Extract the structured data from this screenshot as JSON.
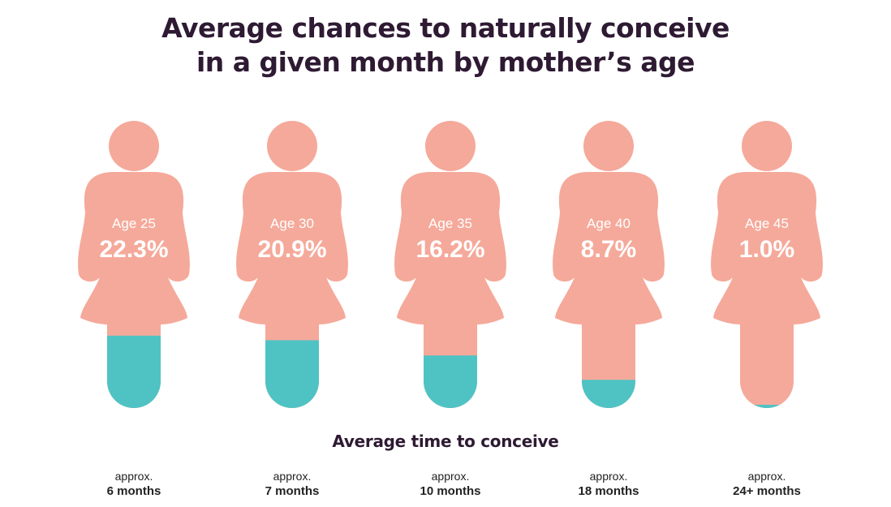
{
  "title_lines": [
    "Average chances to naturally conceive",
    "in a given month by mother’s age"
  ],
  "subtitle": "Average time to conceive",
  "colors": {
    "figure": "#f5a99a",
    "fill": "#4fc3c4",
    "text_dark": "#2e1a33"
  },
  "chart_data": {
    "type": "bar",
    "title": "Average chances to naturally conceive in a given month by mother’s age",
    "categories": [
      "Age 25",
      "Age 30",
      "Age 35",
      "Age 40",
      "Age 45"
    ],
    "values": [
      22.3,
      20.9,
      16.2,
      8.7,
      1.0
    ],
    "value_labels": [
      "22.3%",
      "20.9%",
      "16.2%",
      "8.7%",
      "1.0%"
    ],
    "time_to_conceive": [
      {
        "approx": "approx.",
        "months": "6 months"
      },
      {
        "approx": "approx.",
        "months": "7 months"
      },
      {
        "approx": "approx.",
        "months": "10 months"
      },
      {
        "approx": "approx.",
        "months": "18 months"
      },
      {
        "approx": "approx.",
        "months": "24+ months"
      }
    ]
  }
}
